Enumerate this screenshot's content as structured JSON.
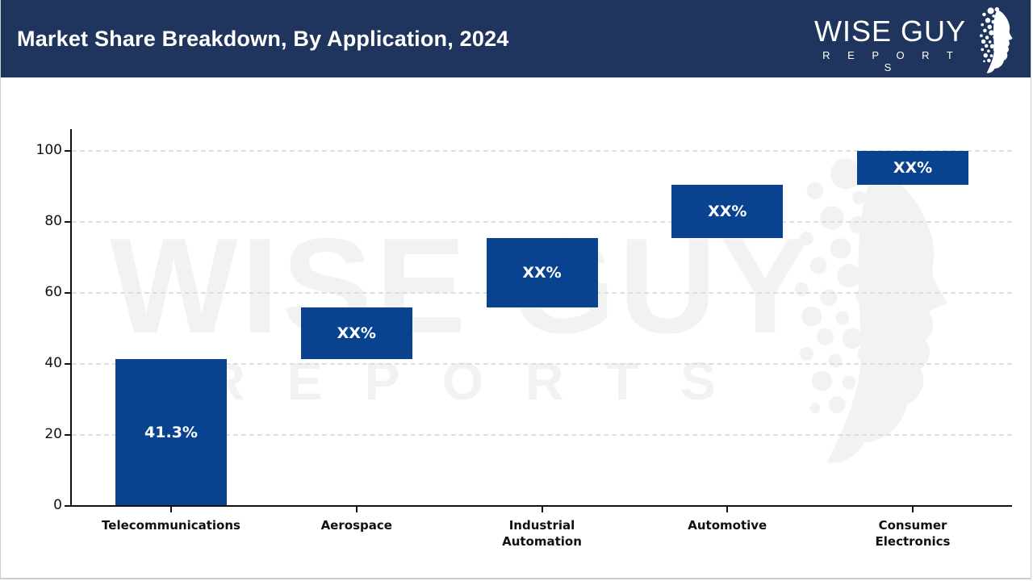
{
  "header": {
    "title": "Market Share Breakdown, By Application, 2024",
    "logo": {
      "line1": "WISE GUY",
      "line2": "R E P O R T S"
    }
  },
  "watermark": {
    "line1": "WISE GUY",
    "line2": "REPORTS"
  },
  "chart_data": {
    "type": "bar",
    "subtype": "floating-waterfall-segments",
    "title": "Market Share Breakdown, By Application, 2024",
    "xlabel": "",
    "ylabel": "",
    "ylim": [
      0,
      100
    ],
    "yticks": [
      0,
      20,
      40,
      60,
      80,
      100
    ],
    "grid": "horizontal-dashed",
    "legend": "none",
    "bar_color": "#09428f",
    "bar_label_color": "#ffffff",
    "categories": [
      "Telecommunications",
      "Aerospace",
      "Industrial Automation",
      "Automotive",
      "Consumer Electronics"
    ],
    "bars": [
      {
        "category_lines": [
          "Telecommunications"
        ],
        "start": 0,
        "end": 41.3,
        "label": "41.3%"
      },
      {
        "category_lines": [
          "Aerospace"
        ],
        "start": 41.3,
        "end": 56.0,
        "label": "XX%"
      },
      {
        "category_lines": [
          "Industrial",
          "Automation"
        ],
        "start": 56.0,
        "end": 75.5,
        "label": "XX%"
      },
      {
        "category_lines": [
          "Automotive"
        ],
        "start": 75.5,
        "end": 90.5,
        "label": "XX%"
      },
      {
        "category_lines": [
          "Consumer",
          "Electronics"
        ],
        "start": 90.5,
        "end": 100.0,
        "label": "XX%"
      }
    ]
  },
  "colors": {
    "header_bg": "#20355e",
    "grid": "#dedede",
    "axis": "#111111",
    "watermark": "#f2f2f2"
  }
}
